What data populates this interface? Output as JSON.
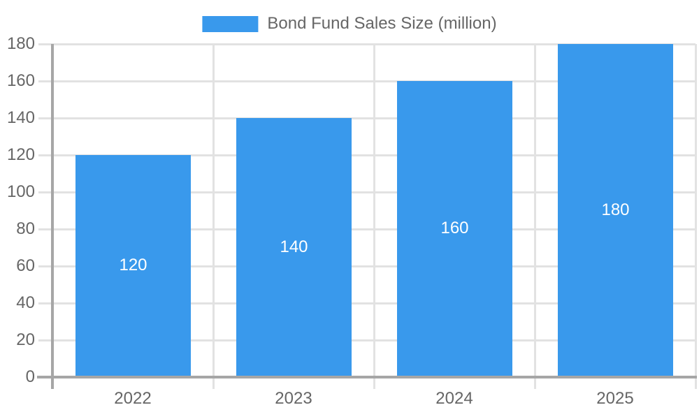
{
  "legend": {
    "items": [
      {
        "label": "Bond Fund Sales Size (million)",
        "color": "#3999EC"
      }
    ]
  },
  "chart_data": {
    "type": "bar",
    "title": "Bond Fund Sales Size (million)",
    "categories": [
      "2022",
      "2023",
      "2024",
      "2025"
    ],
    "values": [
      120,
      140,
      160,
      180
    ],
    "series": [
      {
        "name": "Bond Fund Sales Size (million)",
        "values": [
          120,
          140,
          160,
          180
        ]
      }
    ],
    "data_labels": [
      "120",
      "140",
      "160",
      "180"
    ],
    "xlabel": "",
    "ylabel": "",
    "ylim": [
      0,
      180
    ],
    "yticks": [
      0,
      20,
      40,
      60,
      80,
      100,
      120,
      140,
      160,
      180
    ],
    "grid": true,
    "legend_position": "top-center",
    "colors": {
      "bar": "#3999EC",
      "data_label_text": "#ffffff",
      "axis_text": "#666666",
      "gridline": "#E2E2E2",
      "axis_line": "#A6A6A6",
      "background": "#ffffff"
    }
  }
}
